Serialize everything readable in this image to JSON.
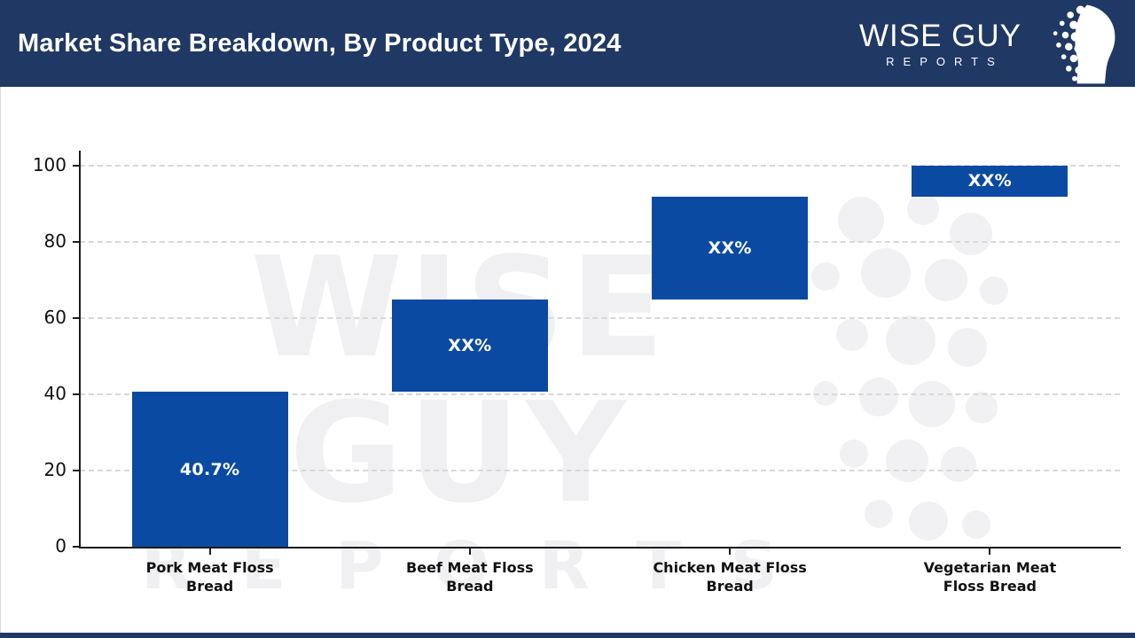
{
  "header": {
    "title": "Market Share Breakdown, By Product Type, 2024",
    "logo": {
      "line1": "WISE GUY",
      "line2": "REPORTS",
      "face_icon": "wise-guy-head-icon"
    }
  },
  "watermark": {
    "line1": "WISE GUY",
    "line2": "REPORTS",
    "face_icon": "wise-guy-head-watermark-icon"
  },
  "chart_data": {
    "type": "bar",
    "style": "waterfall",
    "title": "Market Share Breakdown, By Product Type, 2024",
    "categories": [
      "Pork Meat Floss Bread",
      "Beef Meat Floss Bread",
      "Chicken Meat Floss Bread",
      "Vegetarian Meat Floss Bread"
    ],
    "segments": [
      {
        "category": "Pork Meat Floss Bread",
        "start": 0,
        "end": 40.7,
        "label": "40.7%"
      },
      {
        "category": "Beef Meat Floss Bread",
        "start": 40.7,
        "end": 65,
        "label": "XX%"
      },
      {
        "category": "Chicken Meat Floss Bread",
        "start": 65,
        "end": 92,
        "label": "XX%"
      },
      {
        "category": "Vegetarian Meat Floss Bread",
        "start": 92,
        "end": 100,
        "label": "XX%"
      }
    ],
    "yticks": [
      0,
      20,
      40,
      60,
      80,
      100
    ],
    "ylim": [
      0,
      104
    ],
    "xlabel": "",
    "ylabel": "",
    "grid": "dashed-horizontal",
    "legend": "none",
    "bar_color": "#0b4aa3",
    "bar_label_color": "#ffffff",
    "header_color": "#203864"
  }
}
